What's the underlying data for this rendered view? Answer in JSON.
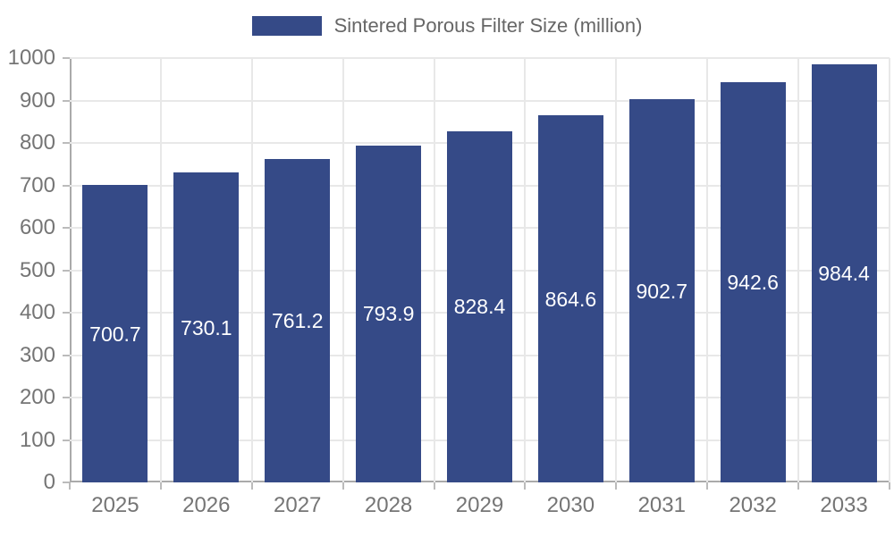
{
  "chart_data": {
    "type": "bar",
    "title": "",
    "legend": "Sintered Porous Filter Size (million)",
    "categories": [
      "2025",
      "2026",
      "2027",
      "2028",
      "2029",
      "2030",
      "2031",
      "2032",
      "2033"
    ],
    "values": [
      700.7,
      730.1,
      761.2,
      793.9,
      828.4,
      864.6,
      902.7,
      942.6,
      984.4
    ],
    "xlabel": "",
    "ylabel": "",
    "ylim": [
      0,
      1000
    ],
    "ytick_step": 100,
    "grid": true,
    "legend_position": "top",
    "colors": {
      "bar": "#354a87",
      "bar_value_text": "#ffffff",
      "axis_text": "#757575",
      "legend_text": "#666666",
      "grid_line": "#e8e8e8",
      "axis_line": "#aaaaaa"
    }
  }
}
